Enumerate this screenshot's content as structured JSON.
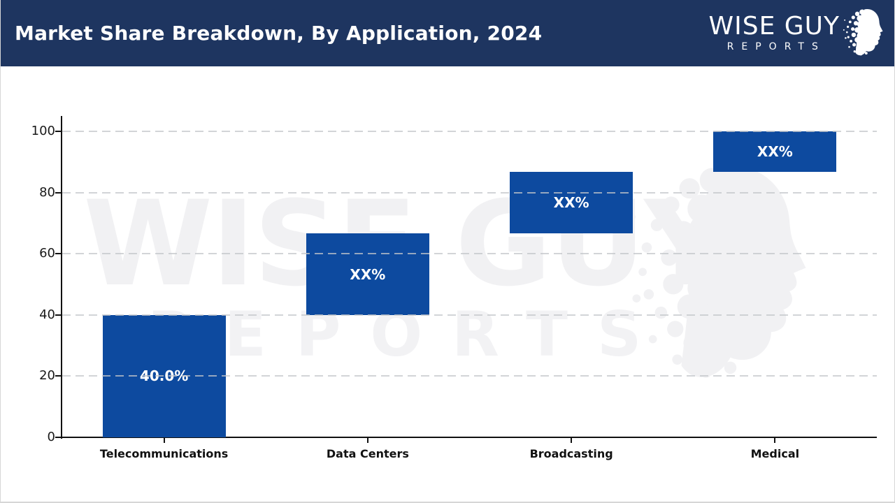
{
  "header": {
    "title": "Market Share Breakdown, By Application, 2024",
    "logo": {
      "line1": "WISE GUY",
      "line2": "REPORTS"
    }
  },
  "watermark": {
    "line1": "WISE GUY",
    "line2": "REPORTS"
  },
  "colors": {
    "header_bg": "#1e3560",
    "bar": "#0d4a9f",
    "bar_label": "#ffffff",
    "gridline": "#d9d9d9",
    "axis": "#111111",
    "watermark": "#f1f1f3"
  },
  "chart_data": {
    "type": "bar",
    "subtype": "waterfall",
    "title": "Market Share Breakdown, By Application, 2024",
    "categories": [
      "Telecommunications",
      "Data Centers",
      "Broadcasting",
      "Medical"
    ],
    "segments": [
      {
        "category": "Telecommunications",
        "start": 0,
        "end": 40,
        "label": "40.0%"
      },
      {
        "category": "Data Centers",
        "start": 40,
        "end": 66.6,
        "label": "XX%"
      },
      {
        "category": "Broadcasting",
        "start": 66.6,
        "end": 86.8,
        "label": "XX%"
      },
      {
        "category": "Medical",
        "start": 86.8,
        "end": 100,
        "label": "XX%"
      }
    ],
    "xlabel": "",
    "ylabel": "",
    "yticks": [
      0,
      20,
      40,
      60,
      80,
      100
    ],
    "ylim": [
      0,
      105
    ],
    "grid": "horizontal-dashed",
    "legend": "none",
    "bar_color": "#0d4a9f",
    "bar_label_color": "#ffffff"
  }
}
